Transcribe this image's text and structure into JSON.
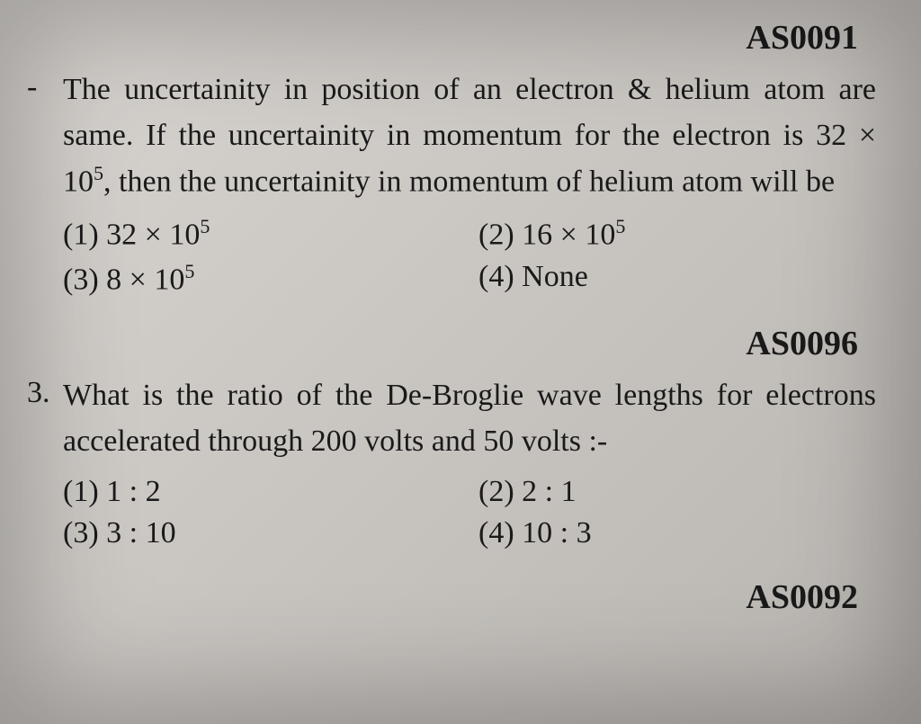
{
  "q1": {
    "code": "AS0091",
    "bullet": "-",
    "text_parts": {
      "a": "The uncertainity in position of an electron & helium atom are same. If the uncertainity in momentum for the electron is 32 × 10",
      "exp1": "5",
      "b": ", then the uncertainity in momentum of helium atom will be"
    },
    "options": {
      "o1_a": "(1) 32 × 10",
      "o1_exp": "5",
      "o2_a": "(2) 16 × 10",
      "o2_exp": "5",
      "o3_a": "(3) 8 × 10",
      "o3_exp": "5",
      "o4": "(4) None"
    }
  },
  "q2": {
    "code": "AS0096",
    "bullet": "3.",
    "text": "What is the ratio of the De-Broglie wave lengths for electrons accelerated through 200 volts and 50 volts :-",
    "options": {
      "o1": "(1) 1 : 2",
      "o2": "(2) 2 : 1",
      "o3": "(3) 3 : 10",
      "o4": "(4) 10 : 3"
    }
  },
  "footer_code": "AS0092",
  "colors": {
    "text": "#1a1a1a",
    "bg_top": "#d8d4d0",
    "bg_bottom": "#b8b4b0"
  },
  "fontsizes": {
    "code": 38,
    "body": 34
  }
}
